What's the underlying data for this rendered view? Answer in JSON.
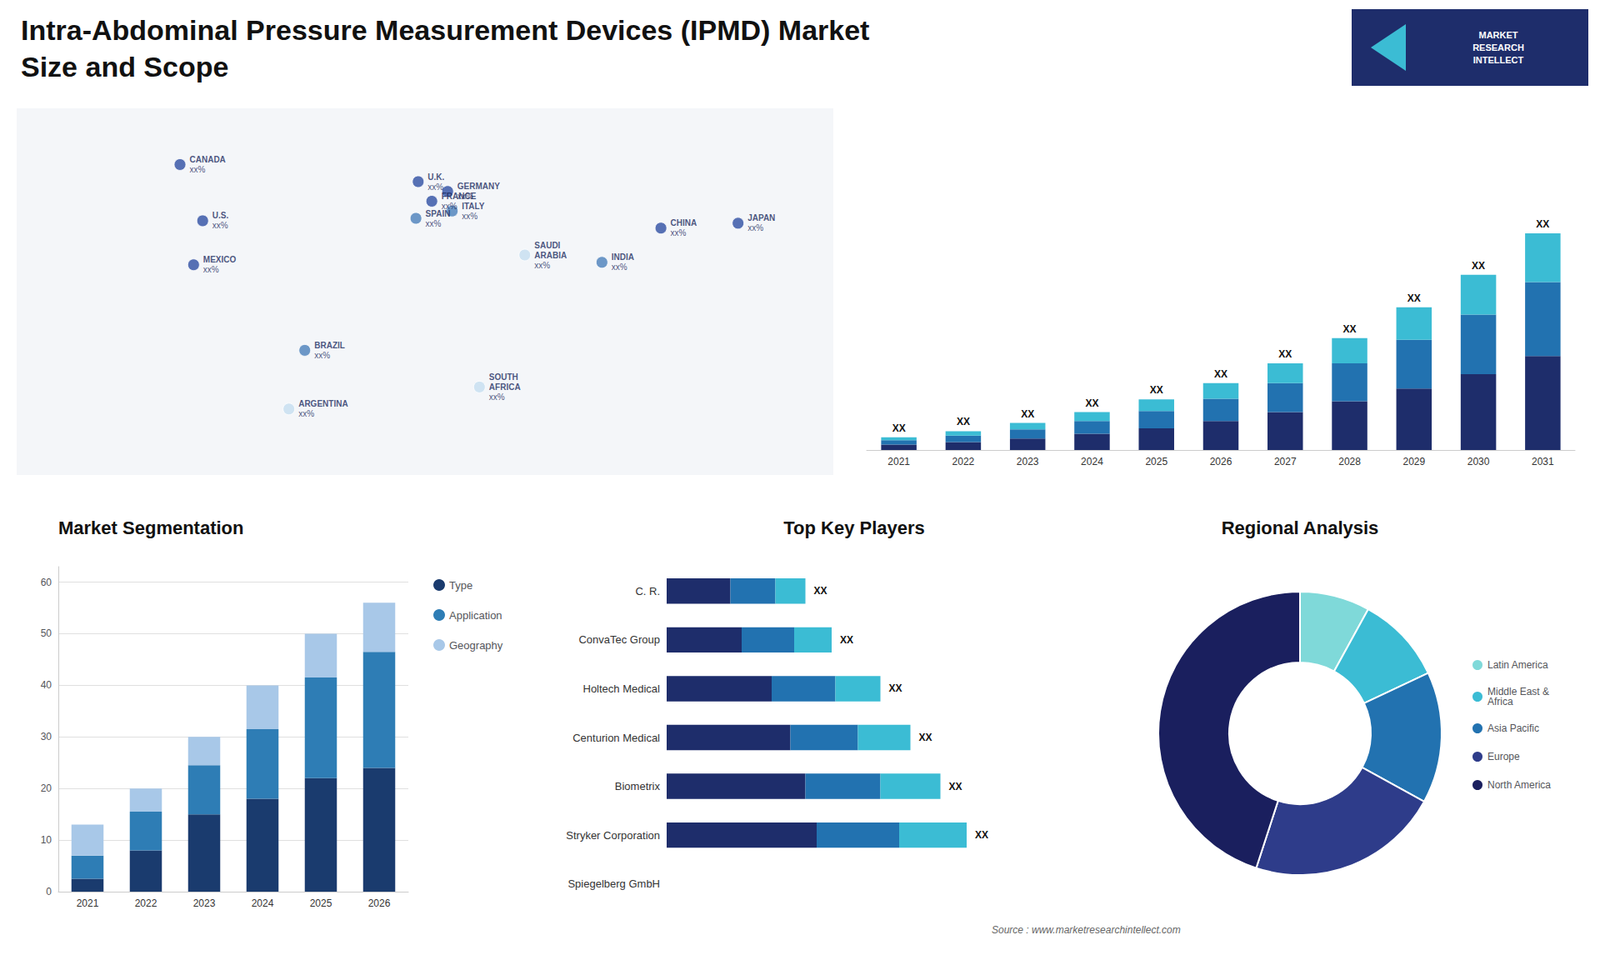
{
  "title": "Intra-Abdominal Pressure Measurement Devices (IPMD) Market",
  "subtitle": "Size and Scope",
  "annotations": [
    {
      "text": "MARKET\nRESEARCH\nINTELLECT"
    },
    {
      "text": "Source : www.marketresearchintellect.com"
    }
  ],
  "chart_data": [
    {
      "type": "scatter",
      "x": [
        -108,
        -98,
        -102,
        -53,
        -60,
        -3,
        3,
        -4,
        10,
        12,
        44,
        24,
        104,
        78,
        138
      ],
      "values": [
        62,
        39,
        21,
        -14,
        -38,
        55,
        47,
        40,
        51,
        43,
        25,
        -29,
        36,
        22,
        38
      ],
      "colors": [
        "#2e4fa3",
        "#2e4fa3",
        "#2e4fa3",
        "#4a7fba",
        "#c5dff0",
        "#2e4fa3",
        "#2e4fa3",
        "#4a7fba",
        "#2e4fa3",
        "#4a7fba",
        "#c5dff0",
        "#c5dff0",
        "#2e4fa3",
        "#4a7fba",
        "#2e4fa3"
      ],
      "xlim": [
        -180,
        180
      ],
      "ylim": [
        -65,
        85
      ],
      "tick_labels": false,
      "grid": false,
      "annotations": [
        {
          "text": "CANADA",
          "x": -108,
          "y": 62
        },
        {
          "text": "xx%",
          "x": -108,
          "y": 62
        },
        {
          "text": "U.S.",
          "x": -98,
          "y": 39
        },
        {
          "text": "xx%",
          "x": -98,
          "y": 39
        },
        {
          "text": "MEXICO",
          "x": -102,
          "y": 21
        },
        {
          "text": "xx%",
          "x": -102,
          "y": 21
        },
        {
          "text": "BRAZIL",
          "x": -53,
          "y": -14
        },
        {
          "text": "xx%",
          "x": -53,
          "y": -14
        },
        {
          "text": "ARGENTINA",
          "x": -60,
          "y": -38
        },
        {
          "text": "xx%",
          "x": -60,
          "y": -38
        },
        {
          "text": "U.K.",
          "x": -3,
          "y": 55
        },
        {
          "text": "xx%",
          "x": -3,
          "y": 55
        },
        {
          "text": "FRANCE",
          "x": 3,
          "y": 47
        },
        {
          "text": "xx%",
          "x": 3,
          "y": 47
        },
        {
          "text": "SPAIN",
          "x": -4,
          "y": 40
        },
        {
          "text": "xx%",
          "x": -4,
          "y": 40
        },
        {
          "text": "GERMANY",
          "x": 10,
          "y": 51
        },
        {
          "text": "xx%",
          "x": 10,
          "y": 51
        },
        {
          "text": "ITALY",
          "x": 12,
          "y": 43
        },
        {
          "text": "xx%",
          "x": 12,
          "y": 43
        },
        {
          "text": "SAUDI\nARABIA",
          "x": 44,
          "y": 25
        },
        {
          "text": "xx%",
          "x": 44,
          "y": 25
        },
        {
          "text": "SOUTH\nAFRICA",
          "x": 24,
          "y": -29
        },
        {
          "text": "xx%",
          "x": 24,
          "y": -29
        },
        {
          "text": "CHINA",
          "x": 104,
          "y": 36
        },
        {
          "text": "xx%",
          "x": 104,
          "y": 36
        },
        {
          "text": "INDIA",
          "x": 78,
          "y": 22
        },
        {
          "text": "xx%",
          "x": 78,
          "y": 22
        },
        {
          "text": "JAPAN",
          "x": 138,
          "y": 38
        },
        {
          "text": "xx%",
          "x": 138,
          "y": 38
        }
      ]
    },
    {
      "type": "bar",
      "stacked": true,
      "categories": [
        "2021",
        "2022",
        "2023",
        "2024",
        "2025",
        "2026",
        "2027",
        "2028",
        "2029",
        "2030",
        "2031"
      ],
      "series": [
        {
          "color": "#1e2d6b",
          "values": [
            1.5,
            2.2,
            3.2,
            4.5,
            6.0,
            8.0,
            10.5,
            13.5,
            17.0,
            21.0,
            26.0
          ]
        },
        {
          "color": "#2272b0",
          "values": [
            1.2,
            1.8,
            2.5,
            3.5,
            4.8,
            6.2,
            8.0,
            10.5,
            13.5,
            16.5,
            20.5
          ]
        },
        {
          "color": "#3bbcd4",
          "values": [
            0.8,
            1.2,
            1.8,
            2.5,
            3.2,
            4.3,
            5.5,
            7.0,
            9.0,
            11.0,
            13.5
          ]
        }
      ],
      "ylim": [
        0,
        90
      ],
      "tick_labels": "x",
      "grid": false,
      "annotations": [
        {
          "text": "XX",
          "x": "2021"
        },
        {
          "text": "XX",
          "x": "2022"
        },
        {
          "text": "XX",
          "x": "2023"
        },
        {
          "text": "XX",
          "x": "2024"
        },
        {
          "text": "XX",
          "x": "2025"
        },
        {
          "text": "XX",
          "x": "2026"
        },
        {
          "text": "XX",
          "x": "2027"
        },
        {
          "text": "XX",
          "x": "2028"
        },
        {
          "text": "XX",
          "x": "2029"
        },
        {
          "text": "XX",
          "x": "2030"
        },
        {
          "text": "XX",
          "x": "2031"
        }
      ]
    },
    {
      "type": "bar",
      "stacked": true,
      "title": "Market Segmentation",
      "categories": [
        "2021",
        "2022",
        "2023",
        "2024",
        "2025",
        "2026"
      ],
      "series": [
        {
          "name": "Type",
          "color": "#1a3b6e",
          "values": [
            2.5,
            8.0,
            15.0,
            18.0,
            22.0,
            24.0
          ]
        },
        {
          "name": "Application",
          "color": "#2e7db5",
          "values": [
            4.5,
            7.5,
            9.5,
            13.5,
            19.5,
            22.5
          ]
        },
        {
          "name": "Geography",
          "color": "#a8c8e8",
          "values": [
            6.0,
            4.5,
            5.5,
            8.5,
            8.5,
            9.5
          ]
        }
      ],
      "ylim": [
        0,
        63
      ],
      "yticks": [
        0,
        10,
        20,
        30,
        40,
        50,
        60
      ],
      "grid": true,
      "legend": "right"
    },
    {
      "type": "bar",
      "orientation": "horizontal",
      "stacked": true,
      "title": "Top Key Players",
      "categories": [
        "Spiegelberg GmbH",
        "Stryker Corporation",
        "Biometrix",
        "Centurion Medical",
        "Holtech Medical",
        "ConvaTec Group",
        "C. R."
      ],
      "series": [
        {
          "color": "#1e2d6b",
          "values": [
            0,
            40,
            37,
            33,
            28,
            20,
            17
          ]
        },
        {
          "color": "#2272b0",
          "values": [
            0,
            22,
            20,
            18,
            17,
            14,
            12
          ]
        },
        {
          "color": "#3bbcd4",
          "values": [
            0,
            18,
            16,
            14,
            12,
            10,
            8
          ]
        }
      ],
      "xlim": [
        0,
        100
      ],
      "tick_labels": "y",
      "grid": false,
      "annotations": [
        {
          "text": "XX",
          "y": "Stryker Corporation"
        },
        {
          "text": "XX",
          "y": "Biometrix"
        },
        {
          "text": "XX",
          "y": "Centurion Medical"
        },
        {
          "text": "XX",
          "y": "Holtech Medical"
        },
        {
          "text": "XX",
          "y": "ConvaTec Group"
        },
        {
          "text": "XX",
          "y": "C. R."
        }
      ]
    },
    {
      "type": "pie",
      "title": "Regional Analysis",
      "categories": [
        "Latin America",
        "Middle East &\nAfrica",
        "Asia Pacific",
        "Europe",
        "North America"
      ],
      "values": [
        8,
        10,
        15,
        22,
        45
      ],
      "colors": [
        "#7fd9d9",
        "#3bbcd4",
        "#2272b0",
        "#2e3c8a",
        "#1a1f5e"
      ],
      "legend": "right"
    }
  ]
}
